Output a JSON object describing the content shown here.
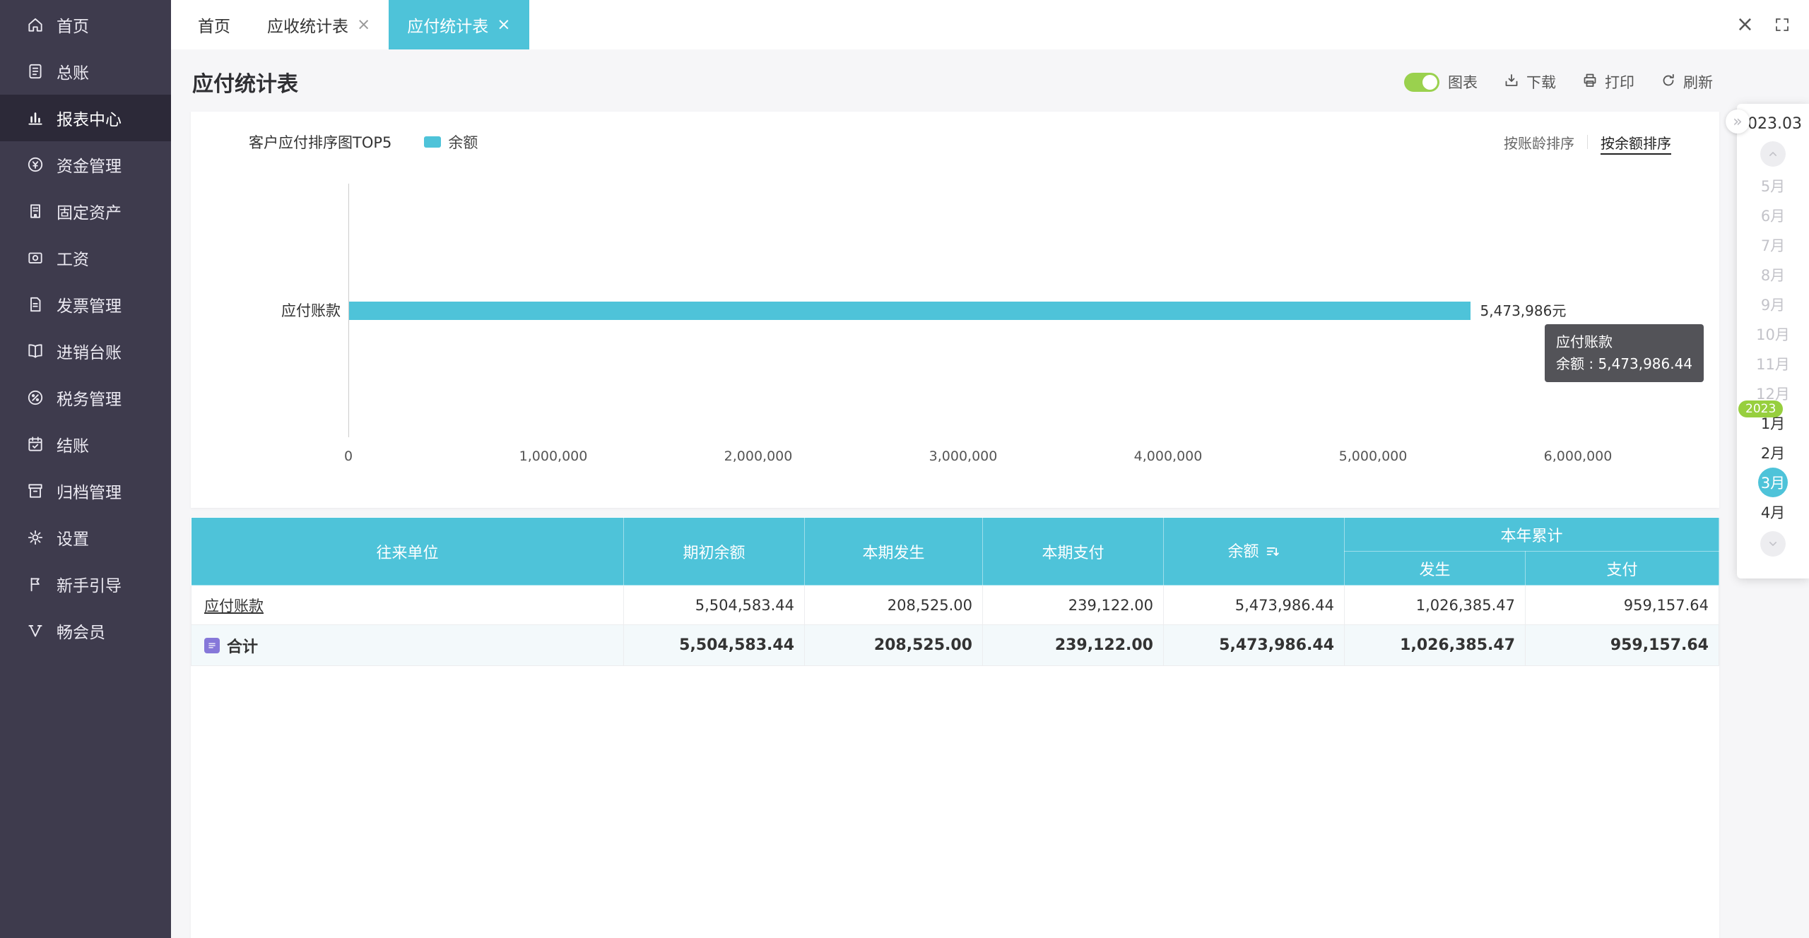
{
  "colors": {
    "teal": "#4ec3d9",
    "sidebar-bg": "#3e3b4d",
    "sidebar-active": "#2c2938",
    "toggle-green": "#9ad14e",
    "badge-green": "#97cf3e",
    "purple": "#8678d9",
    "tooltip-bg": "#4a4a50"
  },
  "sidebar": {
    "items": [
      {
        "label": "首页"
      },
      {
        "label": "总账"
      },
      {
        "label": "报表中心",
        "state": "active"
      },
      {
        "label": "资金管理"
      },
      {
        "label": "固定资产"
      },
      {
        "label": "工资"
      },
      {
        "label": "发票管理"
      },
      {
        "label": "进销台账"
      },
      {
        "label": "税务管理"
      },
      {
        "label": "结账"
      },
      {
        "label": "归档管理"
      },
      {
        "label": "设置"
      },
      {
        "label": "新手引导"
      },
      {
        "label": "畅会员"
      }
    ]
  },
  "tabs": {
    "items": [
      {
        "label": "首页"
      },
      {
        "label": "应收统计表",
        "close": "×"
      },
      {
        "label": "应付统计表",
        "close": "×",
        "state": "active"
      }
    ]
  },
  "window": {
    "close_glyph": "×"
  },
  "page": {
    "title": "应付统计表",
    "toolbar": {
      "chart": "图表",
      "download": "下载",
      "print": "打印",
      "refresh": "刷新"
    }
  },
  "chart": {
    "sort_by_age": "按账龄排序",
    "sort_by_balance": "按余额排序",
    "sort_balance_state": "active",
    "tooltip_title": "应付账款",
    "tooltip_value": "余额 : 5,473,986.44"
  },
  "chart_data": {
    "type": "bar",
    "orientation": "horizontal",
    "title": "客户应付排序图TOP5",
    "categories": [
      "应付账款"
    ],
    "series": [
      {
        "name": "余额",
        "values": [
          5473986.44
        ]
      }
    ],
    "value_labels": [
      "5,473,986元"
    ],
    "xlim": [
      0,
      6000000
    ],
    "x_ticks": [
      "0",
      "1,000,000",
      "2,000,000",
      "3,000,000",
      "4,000,000",
      "5,000,000",
      "6,000,000"
    ],
    "legend_position": "top",
    "grid": false
  },
  "table": {
    "header": {
      "unit": "往来单位",
      "opening_balance": "期初余额",
      "current_incurred": "本期发生",
      "current_paid": "本期支付",
      "balance": "余额",
      "ytd": "本年累计",
      "ytd_incurred": "发生",
      "ytd_paid": "支付"
    },
    "rows": [
      {
        "unit": "应付账款",
        "opening_balance": "5,504,583.44",
        "current_incurred": "208,525.00",
        "current_paid": "239,122.00",
        "balance": "5,473,986.44",
        "ytd_incurred": "1,026,385.47",
        "ytd_paid": "959,157.64"
      }
    ],
    "total": {
      "label": "合计",
      "opening_balance": "5,504,583.44",
      "current_incurred": "208,525.00",
      "current_paid": "239,122.00",
      "balance": "5,473,986.44",
      "ytd_incurred": "1,026,385.47",
      "ytd_paid": "959,157.64"
    }
  },
  "date_panel": {
    "current": "2023.03",
    "year_badge": "2023",
    "collapse_glyph": "»",
    "months": [
      {
        "label": "5月",
        "state": "past"
      },
      {
        "label": "6月",
        "state": "past"
      },
      {
        "label": "7月",
        "state": "past"
      },
      {
        "label": "8月",
        "state": "past"
      },
      {
        "label": "9月",
        "state": "past"
      },
      {
        "label": "10月",
        "state": "past"
      },
      {
        "label": "11月",
        "state": "past"
      },
      {
        "label": "12月",
        "state": "past"
      },
      {
        "label": "1月",
        "state": "normal"
      },
      {
        "label": "2月",
        "state": "normal"
      },
      {
        "label": "3月",
        "state": "active"
      },
      {
        "label": "4月",
        "state": "normal"
      }
    ]
  }
}
